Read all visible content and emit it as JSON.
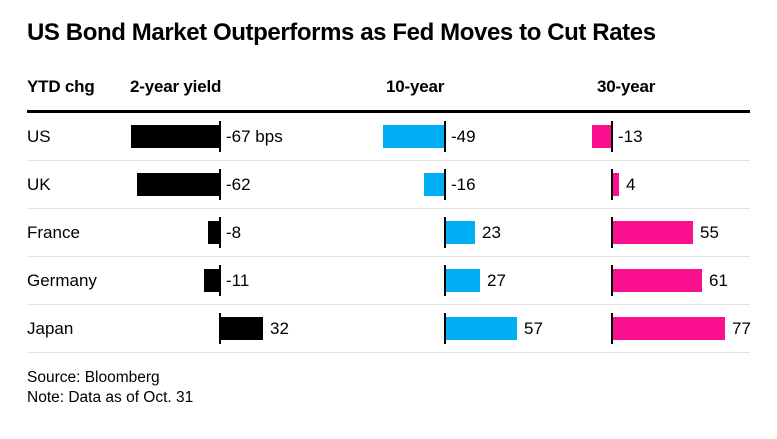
{
  "title": "US Bond Market Outperforms as Fed Moves to Cut Rates",
  "header": {
    "ytd_label": "YTD chg"
  },
  "footer": {
    "source": "Source: Bloomberg",
    "note": "Note: Data as of Oct. 31"
  },
  "colors": {
    "two_year_bar": "#000000",
    "ten_year_bar": "#00aef3",
    "thirty_year_bar": "#fa0f8e",
    "separator": "#e3e3e3",
    "rule": "#000000"
  },
  "chart_data": {
    "type": "bar",
    "orientation": "horizontal",
    "title": "US Bond Market Outperforms as Fed Moves to Cut Rates",
    "xlabel": "YTD chg (bps)",
    "ylabel": "",
    "value_unit": "bps",
    "grid": false,
    "legend_position": "column-headers",
    "categories": [
      "US",
      "UK",
      "France",
      "Germany",
      "Japan"
    ],
    "series": [
      {
        "name": "2-year yield",
        "color": "#000000",
        "values": [
          -67,
          -62,
          -8,
          -11,
          32
        ],
        "labels": [
          "-67 bps",
          "-62",
          "-8",
          "-11",
          "32"
        ]
      },
      {
        "name": "10-year",
        "color": "#00aef3",
        "values": [
          -49,
          -16,
          23,
          27,
          57
        ],
        "labels": [
          "-49",
          "-16",
          "23",
          "27",
          "57"
        ]
      },
      {
        "name": "30-year",
        "color": "#fa0f8e",
        "values": [
          -13,
          4,
          55,
          61,
          77
        ],
        "labels": [
          "-13",
          "4",
          "55",
          "61",
          "77"
        ]
      }
    ]
  }
}
